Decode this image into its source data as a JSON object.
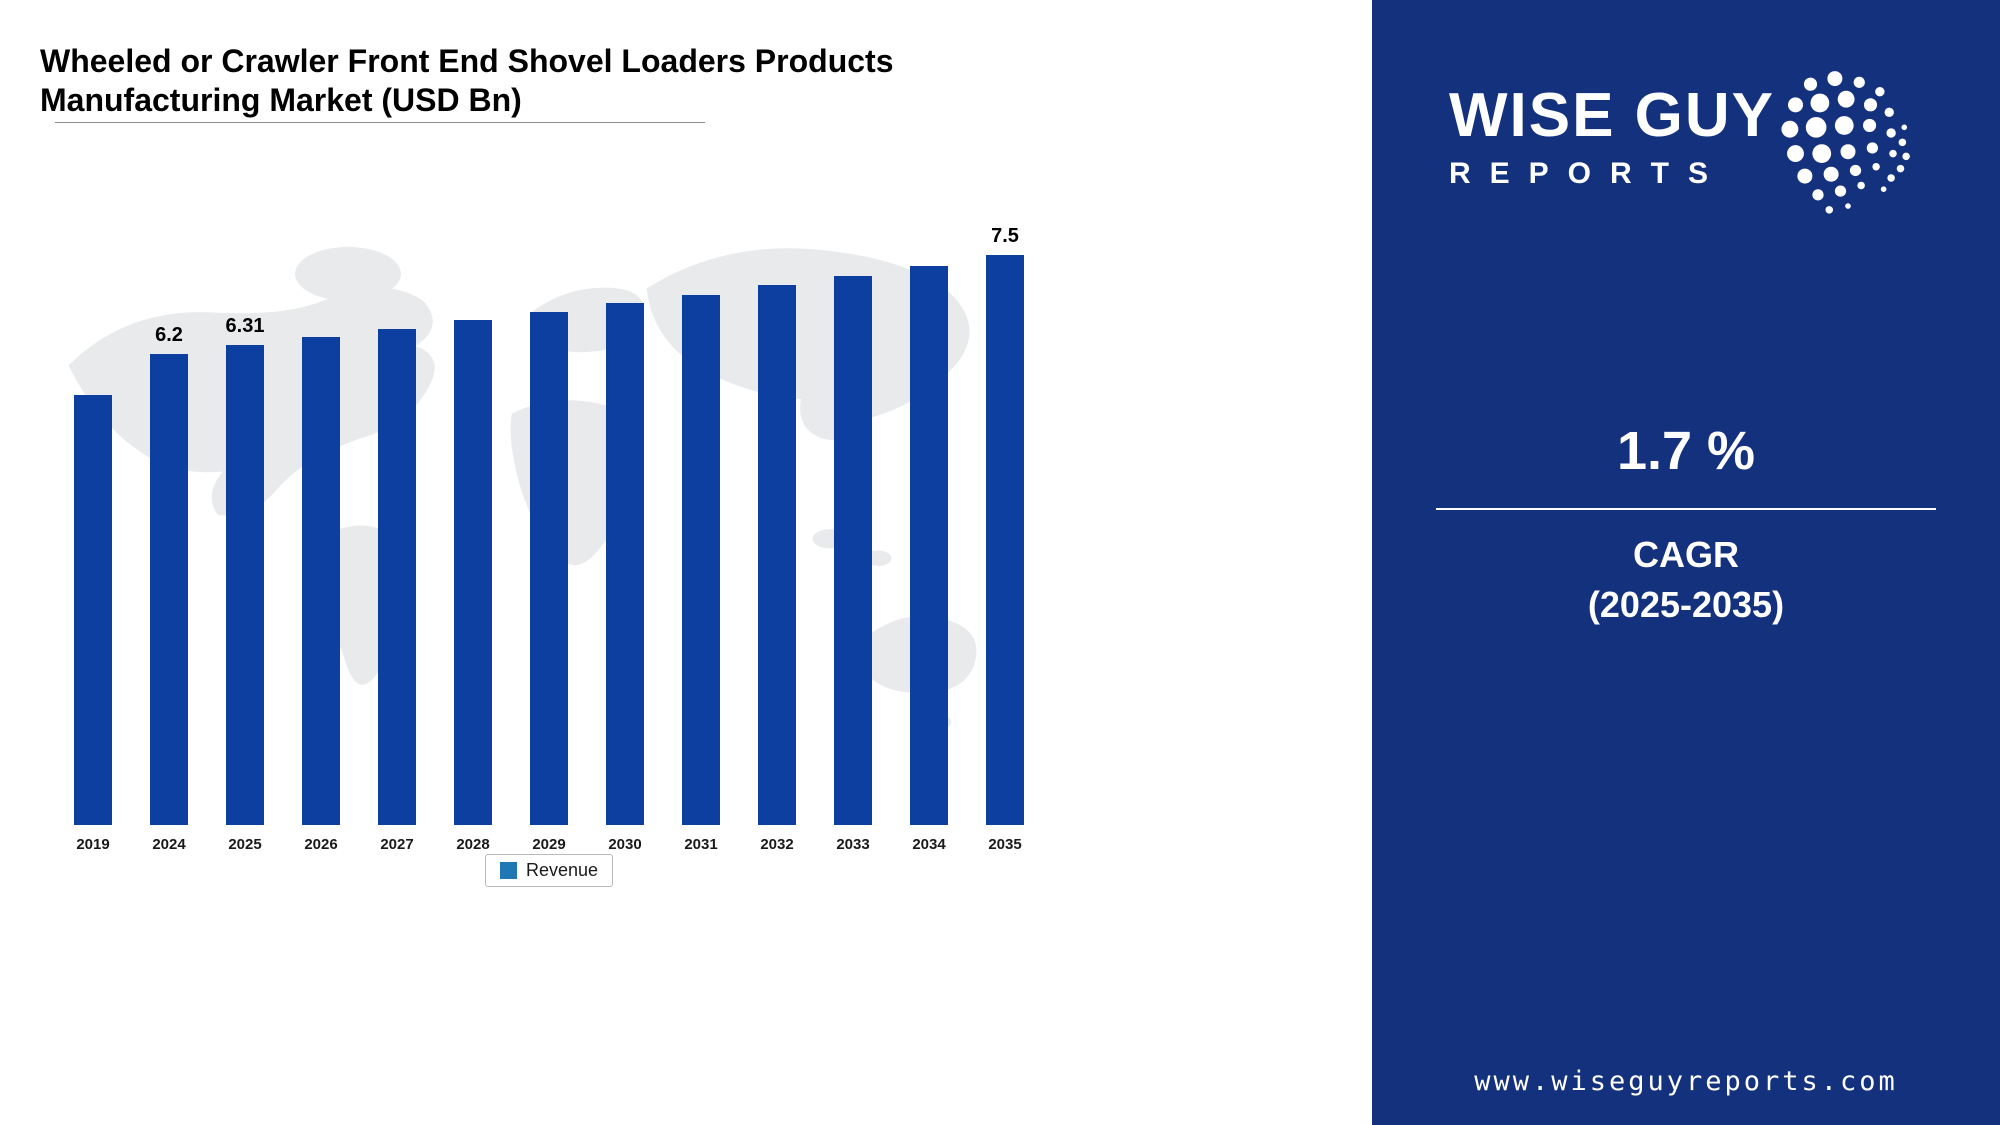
{
  "title": "Wheeled or Crawler Front End Shovel Loaders Products Manufacturing Market (USD Bn)",
  "sidebar": {
    "bg_color": "#14317e",
    "logo_line1": "WISE GUY",
    "logo_line2": "REPORTS",
    "cagr_value": "1.7 %",
    "cagr_label": "CAGR",
    "cagr_range": "(2025-2035)",
    "website": "www.wiseguyreports.com"
  },
  "chart_data": {
    "type": "bar",
    "title": "Wheeled or Crawler Front End Shovel Loaders Products Manufacturing Market (USD Bn)",
    "xlabel": "",
    "ylabel": "",
    "ylim": [
      0,
      8
    ],
    "grid": false,
    "legend_position": "bottom",
    "legend_label": "Revenue",
    "legend_marker_color": "#1f77b4",
    "bar_color": "#0d3fa0",
    "categories": [
      "2019",
      "2024",
      "2025",
      "2026",
      "2027",
      "2028",
      "2029",
      "2030",
      "2031",
      "2032",
      "2033",
      "2034",
      "2035"
    ],
    "values": [
      5.66,
      6.2,
      6.31,
      6.42,
      6.53,
      6.64,
      6.75,
      6.87,
      6.98,
      7.1,
      7.22,
      7.35,
      7.5
    ],
    "data_labels": [
      "",
      "6.2",
      "6.31",
      "",
      "",
      "",
      "",
      "",
      "",
      "",
      "",
      "",
      "7.5"
    ]
  }
}
